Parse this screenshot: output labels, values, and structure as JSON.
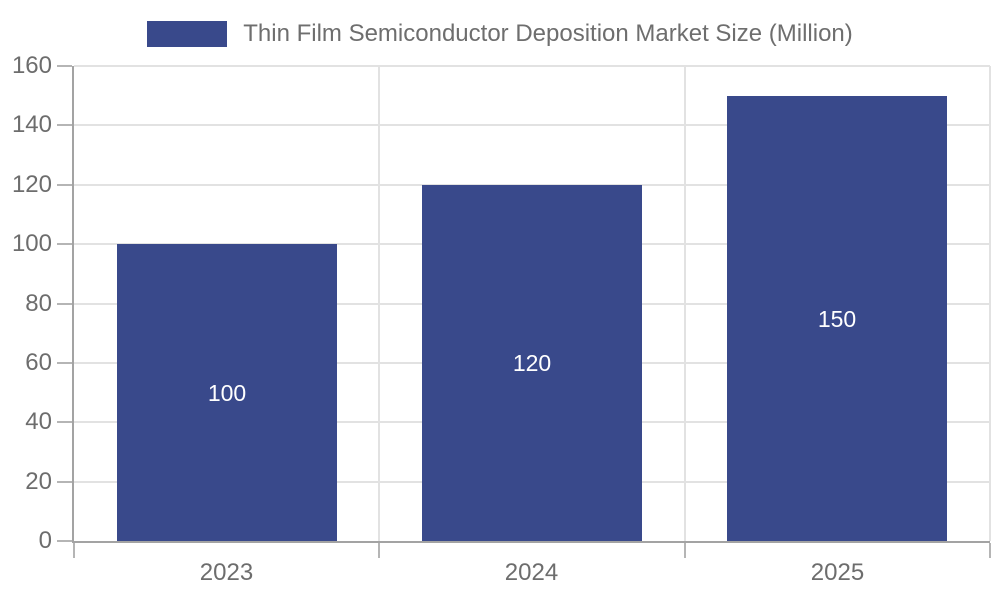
{
  "chart_data": {
    "type": "bar",
    "title": "Thin Film Semiconductor Deposition Market Size (Million)",
    "series_name": "Thin Film Semiconductor Deposition Market Size (Million)",
    "categories": [
      "2023",
      "2024",
      "2025"
    ],
    "values": [
      100,
      120,
      150
    ],
    "bar_value_labels": [
      "100",
      "120",
      "150"
    ],
    "xlabel": "",
    "ylabel": "",
    "ylim": [
      0,
      160
    ],
    "yticks": [
      0,
      20,
      40,
      60,
      80,
      100,
      120,
      140,
      160
    ],
    "grid": true,
    "legend_position": "top-center"
  },
  "colors": {
    "bar": "#39498B",
    "grid": "#e2e2e2",
    "axis": "#a3a3a3",
    "tick": "#b5b5b5",
    "tick_label": "#6d6d6d",
    "title": "#6e6e6e",
    "bar_label": "#ffffff",
    "background": "#ffffff"
  }
}
